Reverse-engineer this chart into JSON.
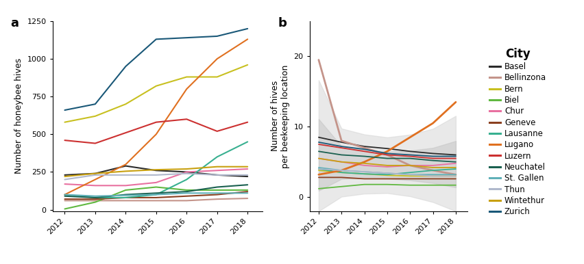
{
  "years": [
    2012,
    2013,
    2014,
    2015,
    2016,
    2017,
    2018
  ],
  "cities": [
    "Basel",
    "Bellinzona",
    "Bern",
    "Biel",
    "Chur",
    "Geneve",
    "Lausanne",
    "Lugano",
    "Luzern",
    "Neuchatel",
    "St. Gallen",
    "Thun",
    "Wintethur",
    "Zurich"
  ],
  "colors": {
    "Basel": "#2b2b2b",
    "Bellinzona": "#c4948a",
    "Bern": "#c8c020",
    "Biel": "#60b840",
    "Chur": "#e870a0",
    "Geneve": "#8B4020",
    "Lausanne": "#38b090",
    "Lugano": "#e07020",
    "Luzern": "#cc3030",
    "Neuchatel": "#1a6050",
    "St. Gallen": "#60b0b8",
    "Thun": "#b0b8cc",
    "Wintethur": "#c8a010",
    "Zurich": "#1a5878"
  },
  "hives_data": {
    "Basel": [
      230,
      240,
      290,
      260,
      250,
      230,
      220
    ],
    "Bellinzona": [
      60,
      60,
      60,
      60,
      60,
      70,
      75
    ],
    "Bern": [
      580,
      620,
      700,
      820,
      880,
      880,
      960
    ],
    "Biel": [
      5,
      50,
      130,
      150,
      130,
      130,
      130
    ],
    "Chur": [
      170,
      160,
      160,
      180,
      250,
      260,
      270
    ],
    "Geneve": [
      70,
      70,
      80,
      80,
      90,
      100,
      120
    ],
    "Lausanne": [
      100,
      80,
      80,
      100,
      200,
      350,
      450
    ],
    "Lugano": [
      100,
      200,
      300,
      500,
      800,
      1000,
      1130
    ],
    "Luzern": [
      460,
      440,
      510,
      580,
      600,
      520,
      580
    ],
    "Neuchatel": [
      90,
      80,
      100,
      110,
      120,
      150,
      165
    ],
    "St. Gallen": [
      100,
      90,
      95,
      100,
      110,
      110,
      110
    ],
    "Thun": [
      200,
      230,
      230,
      230,
      240,
      230,
      230
    ],
    "Wintethur": [
      220,
      240,
      255,
      265,
      270,
      285,
      285
    ],
    "Zurich": [
      660,
      700,
      950,
      1130,
      1140,
      1150,
      1200
    ]
  },
  "hives_per_loc": {
    "Basel": [
      8.5,
      7.8,
      7.2,
      6.9,
      6.5,
      6.2,
      6.0
    ],
    "Bellinzona": [
      19.5,
      8.0,
      7.0,
      6.0,
      4.5,
      3.8,
      3.2
    ],
    "Bern": [
      3.8,
      3.5,
      3.3,
      3.1,
      3.0,
      3.0,
      3.0
    ],
    "Biel": [
      1.2,
      1.5,
      1.8,
      1.8,
      1.7,
      1.7,
      1.7
    ],
    "Chur": [
      5.5,
      5.0,
      4.5,
      4.3,
      4.5,
      4.5,
      4.8
    ],
    "Geneve": [
      2.8,
      2.8,
      2.6,
      2.6,
      2.6,
      2.6,
      2.6
    ],
    "Lausanne": [
      4.0,
      3.5,
      3.3,
      3.2,
      3.5,
      3.8,
      4.0
    ],
    "Lugano": [
      3.2,
      3.8,
      5.0,
      6.5,
      8.5,
      10.5,
      13.5
    ],
    "Luzern": [
      7.5,
      7.0,
      6.5,
      6.0,
      5.8,
      5.5,
      5.5
    ],
    "Neuchatel": [
      6.5,
      6.0,
      5.8,
      5.5,
      5.5,
      5.2,
      5.0
    ],
    "St. Gallen": [
      4.2,
      3.8,
      3.6,
      3.4,
      3.2,
      3.2,
      3.2
    ],
    "Thun": [
      4.0,
      3.8,
      3.6,
      3.4,
      3.2,
      3.0,
      3.0
    ],
    "Wintethur": [
      5.5,
      5.0,
      4.8,
      4.5,
      4.5,
      4.2,
      4.2
    ],
    "Zurich": [
      7.8,
      7.2,
      6.8,
      6.2,
      6.0,
      5.8,
      5.8
    ]
  },
  "background_color": "#ffffff",
  "panel_a_label": "a",
  "panel_b_label": "b",
  "ylabel_a": "Number of honeybee hives",
  "ylabel_b": "Number of hives\nper beekeeping location",
  "ylim_a": [
    -10,
    1250
  ],
  "ylim_b": [
    -2,
    25
  ],
  "yticks_a": [
    0,
    250,
    500,
    750,
    1000,
    1250
  ],
  "yticks_b": [
    0,
    10,
    20
  ],
  "legend_title": "City"
}
